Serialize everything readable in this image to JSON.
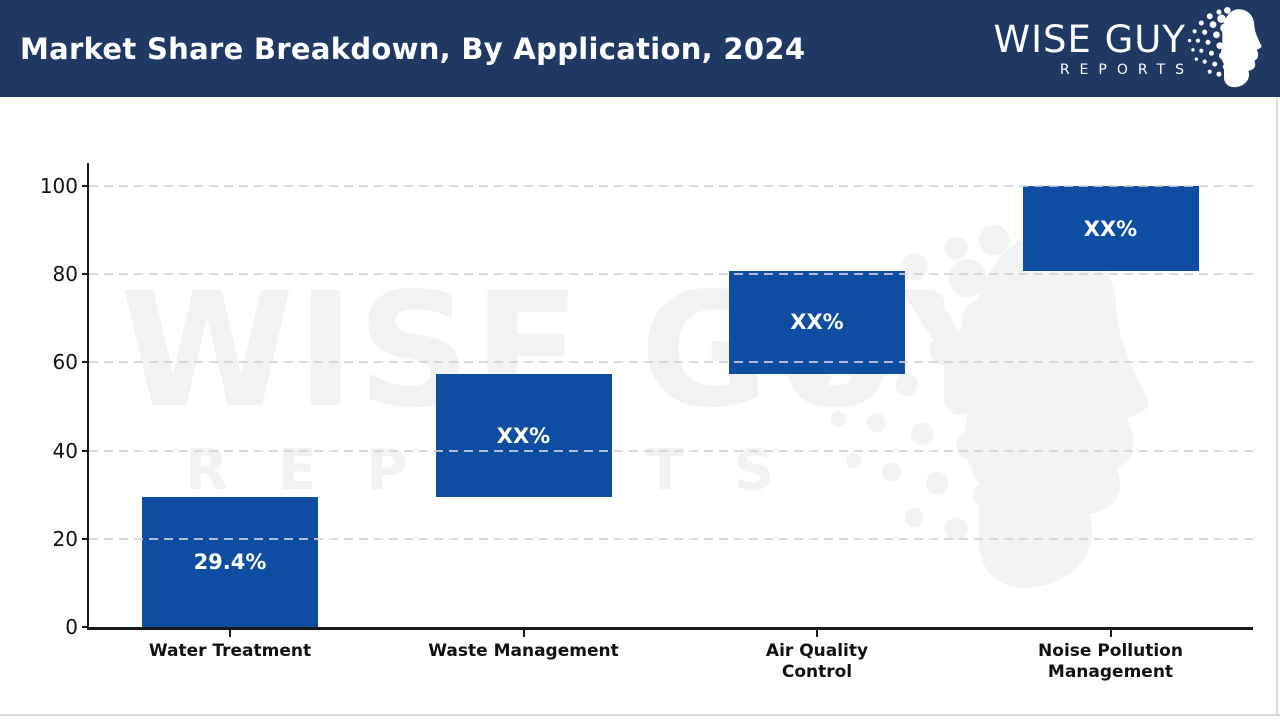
{
  "header": {
    "title": "Market Share Breakdown, By Application, 2024",
    "bg_color": "#1f3864",
    "logo": {
      "name": "WISE GUY",
      "sub": "REPORTS"
    }
  },
  "watermark": {
    "name": "WISE GUY",
    "sub": "REPORTS"
  },
  "chart_data": {
    "type": "bar",
    "variant": "floating-waterfall",
    "title": "Market Share Breakdown, By Application, 2024",
    "categories": [
      "Water Treatment",
      "Waste Management",
      "Air Quality Control",
      "Noise Pollution Management"
    ],
    "category_lines": [
      [
        "Water Treatment"
      ],
      [
        "Waste Management"
      ],
      [
        "Air Quality",
        "Control"
      ],
      [
        "Noise Pollution",
        "Management"
      ]
    ],
    "segments": [
      {
        "category": "Water Treatment",
        "from": 0,
        "to": 29.4,
        "label": "29.4%"
      },
      {
        "category": "Waste Management",
        "from": 29.4,
        "to": 57.4,
        "label": "XX%"
      },
      {
        "category": "Air Quality Control",
        "from": 57.4,
        "to": 80.7,
        "label": "XX%"
      },
      {
        "category": "Noise Pollution Management",
        "from": 80.7,
        "to": 100,
        "label": "XX%"
      }
    ],
    "ylim": [
      0,
      100
    ],
    "yticks": [
      0,
      20,
      40,
      60,
      80,
      100
    ],
    "grid": "horizontal-dashed",
    "grid_color": "#d2d2d2",
    "bar_color": "#0d4da2",
    "bar_label_color": "#ffffff",
    "axis_color": "#1a1a1a",
    "xlabel": "",
    "ylabel": ""
  }
}
